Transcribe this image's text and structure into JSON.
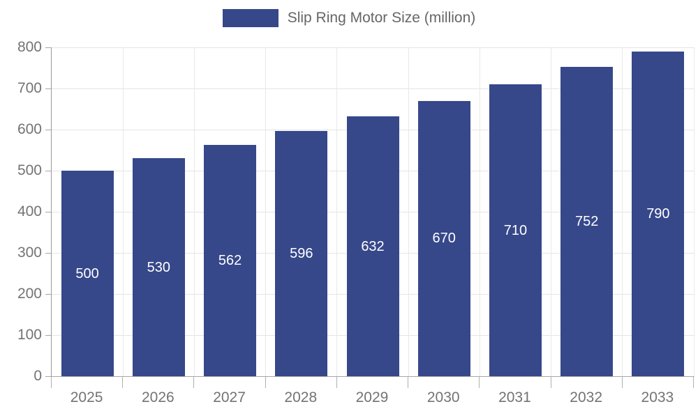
{
  "chart_data": {
    "type": "bar",
    "title": "Slip Ring Motor Size (million)",
    "legend": {
      "label": "Slip Ring Motor Size (million)",
      "position": "top-center"
    },
    "categories": [
      "2025",
      "2026",
      "2027",
      "2028",
      "2029",
      "2030",
      "2031",
      "2032",
      "2033"
    ],
    "series": [
      {
        "name": "Slip Ring Motor Size (million)",
        "values": [
          500,
          530,
          562,
          596,
          632,
          670,
          710,
          752,
          790
        ]
      }
    ],
    "value_labels": [
      "500",
      "530",
      "562",
      "596",
      "632",
      "670",
      "710",
      "752",
      "790"
    ],
    "xlabel": "",
    "ylabel": "",
    "ylim": [
      0,
      800
    ],
    "ytick_step": 100,
    "ytick_labels": [
      "0",
      "100",
      "200",
      "300",
      "400",
      "500",
      "600",
      "700",
      "800"
    ],
    "grid": true,
    "colors": {
      "bar": "#36488a",
      "grid": "#e4e4e4",
      "axis": "#a6a6a6",
      "tick_label": "#737373",
      "legend_text": "#666666",
      "value_label": "#ffffff",
      "background": "#ffffff"
    }
  }
}
